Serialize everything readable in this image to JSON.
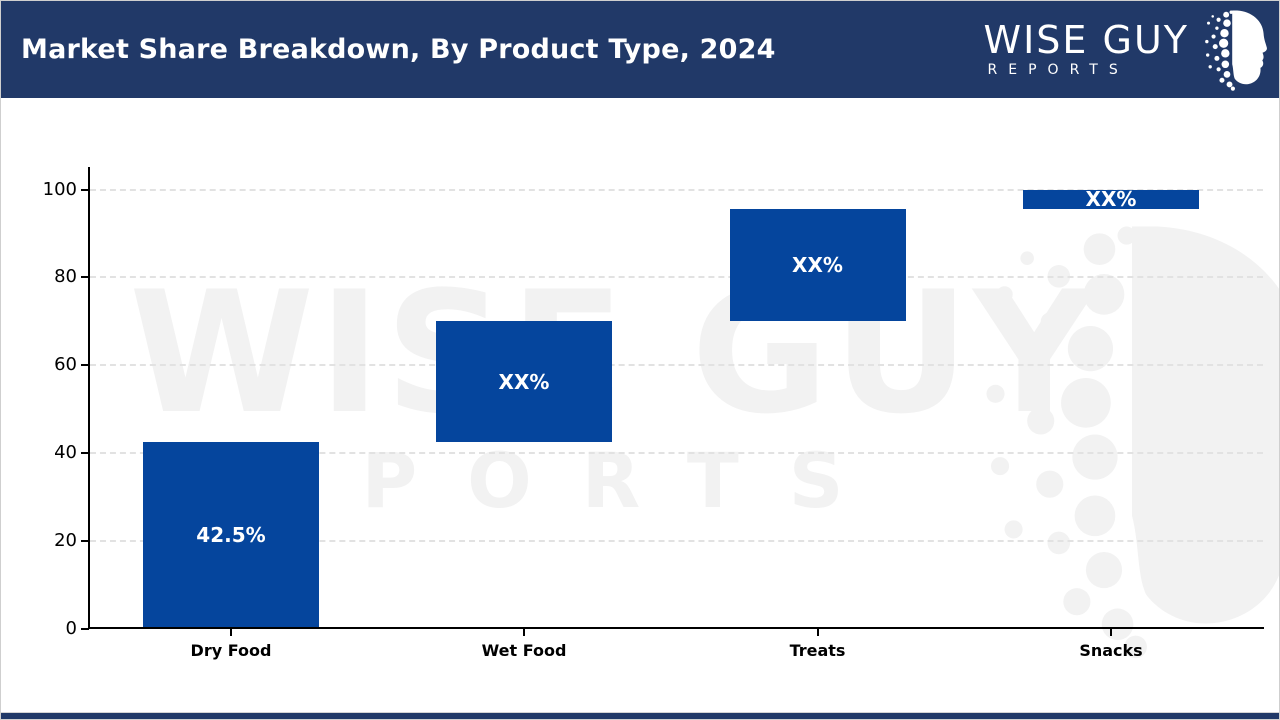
{
  "header": {
    "title": "Market Share Breakdown, By Product Type, 2024",
    "logo": {
      "line1": "WISE GUY",
      "line2": "REPORTS"
    }
  },
  "watermark": {
    "line1": "WISE GUY",
    "line2": "REPORTS"
  },
  "colors": {
    "header_bg": "#213968",
    "footer_bg": "#213968",
    "bar": "#05459d",
    "gridline": "#e2e2e2",
    "axis": "#000000",
    "watermark": "#f2f2f2",
    "bar_label": "#ffffff"
  },
  "chart_data": {
    "type": "bar",
    "subtype": "waterfall-market-share-breakdown",
    "title": "Market Share Breakdown, By Product Type, 2024",
    "categories": [
      "Dry Food",
      "Wet Food",
      "Treats",
      "Snacks"
    ],
    "segments": [
      {
        "category": "Dry Food",
        "start": 0,
        "end": 42.5,
        "value": 42.5,
        "label": "42.5%"
      },
      {
        "category": "Wet Food",
        "start": 42.5,
        "end": 70,
        "value": 27.5,
        "label": "XX%"
      },
      {
        "category": "Treats",
        "start": 70,
        "end": 95.5,
        "value": 25.5,
        "label": "XX%"
      },
      {
        "category": "Snacks",
        "start": 95.5,
        "end": 100,
        "value": 4.5,
        "label": "XX%"
      }
    ],
    "unit": "%",
    "xlabel": "",
    "ylabel": "",
    "yticks": [
      0,
      20,
      40,
      60,
      80,
      100
    ],
    "ylim": [
      0,
      105
    ],
    "grid": "horizontal-dashed",
    "legend": "none"
  }
}
